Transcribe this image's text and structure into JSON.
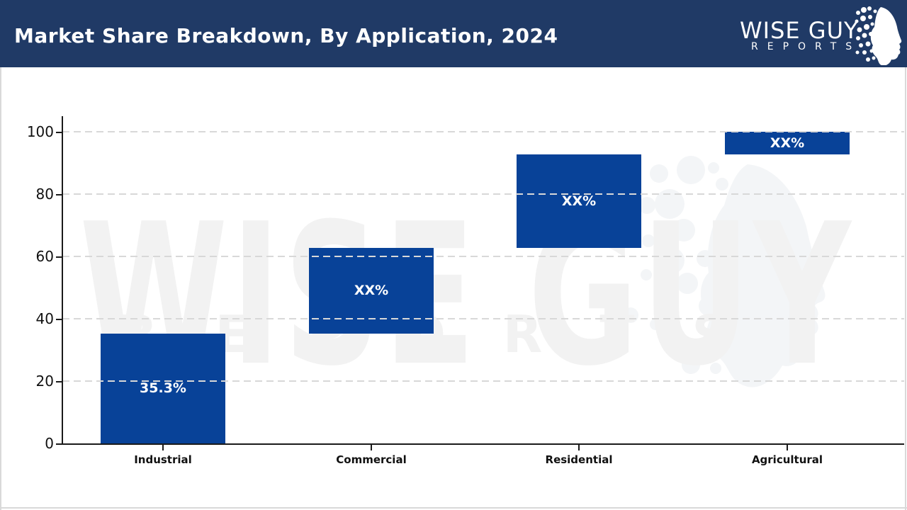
{
  "header": {
    "title": "Market Share Breakdown, By Application, 2024",
    "logo": {
      "line1": "WISE GUY",
      "line2": "REPORTS",
      "icon": "dotted-head-profile-icon"
    }
  },
  "watermark": {
    "line1": "WISE GUY",
    "line2": "R E P O R T S"
  },
  "colors": {
    "header_bg": "#203a66",
    "bar": "#084298",
    "grid": "#d8d8d8",
    "axis": "#1a1a1a",
    "value_label": "#ffffff",
    "watermark": "#f2f2f2",
    "watermark_head": "#f3f5f7",
    "frame_border": "#d9d9d9"
  },
  "chart_data": {
    "type": "bar",
    "subtype": "waterfall",
    "title": "Market Share Breakdown, By Application, 2024",
    "categories": [
      "Industrial",
      "Commercial",
      "Residential",
      "Agricultural"
    ],
    "bars": [
      {
        "category": "Industrial",
        "start": 0,
        "end": 35.3,
        "label": "35.3%"
      },
      {
        "category": "Commercial",
        "start": 35.3,
        "end": 62.8,
        "label": "XX%"
      },
      {
        "category": "Residential",
        "start": 62.8,
        "end": 92.7,
        "label": "XX%"
      },
      {
        "category": "Agricultural",
        "start": 92.7,
        "end": 100,
        "label": "XX%"
      }
    ],
    "xlabel": "",
    "ylabel": "",
    "yticks": [
      0,
      20,
      40,
      60,
      80,
      100
    ],
    "ylim": [
      0,
      104
    ],
    "grid": "horizontal-dashed",
    "legend": "none",
    "bar_color": "#084298"
  }
}
